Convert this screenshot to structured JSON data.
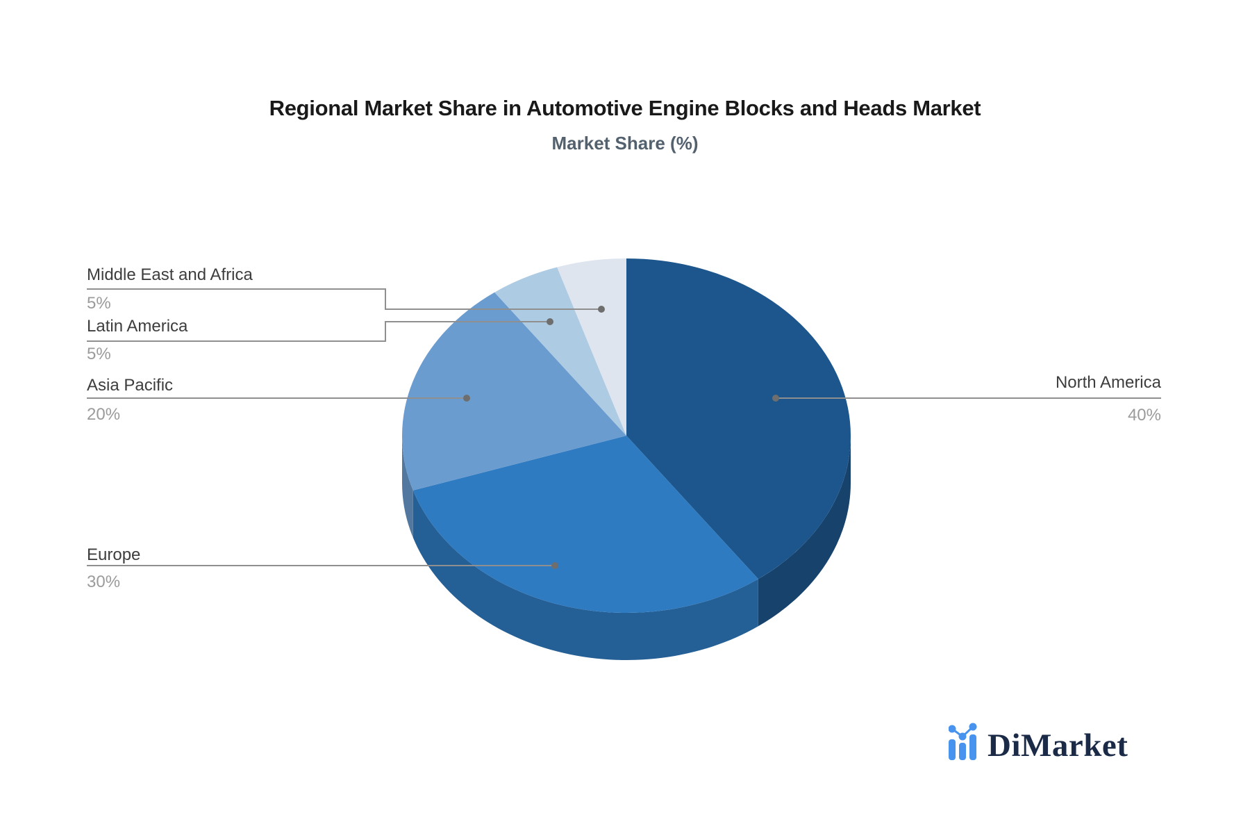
{
  "header": {
    "title": "Regional Market Share in Automotive Engine Blocks and Heads Market",
    "subtitle": "Market Share (%)"
  },
  "chart_data": {
    "type": "pie",
    "style": "3d",
    "title": "Regional Market Share in Automotive Engine Blocks and Heads Market",
    "subtitle": "Market Share (%)",
    "unit": "%",
    "start_angle": "12-o-clock",
    "direction": "clockwise",
    "legend_position": "callout-labels",
    "slices": [
      {
        "label": "North America",
        "value": 40,
        "display": "40%",
        "color": "#1C568C"
      },
      {
        "label": "Europe",
        "value": 30,
        "display": "30%",
        "color": "#2F7BC1"
      },
      {
        "label": "Asia Pacific",
        "value": 20,
        "display": "20%",
        "color": "#6B9CCF"
      },
      {
        "label": "Latin America",
        "value": 5,
        "display": "5%",
        "color": "#AECBE4"
      },
      {
        "label": "Middle East and Africa",
        "value": 5,
        "display": "5%",
        "color": "#DEE5EF"
      }
    ],
    "callout_line_color": "#8F8F8F",
    "callout_dot_color": "#6E6E6E",
    "label_color": "#3D3D3D",
    "value_color": "#9B9B9B"
  },
  "logo": {
    "text": "DiMarket",
    "icon": "bar-chart-icon",
    "text_color": "#1B2B47",
    "icon_color": "#4793EE"
  }
}
